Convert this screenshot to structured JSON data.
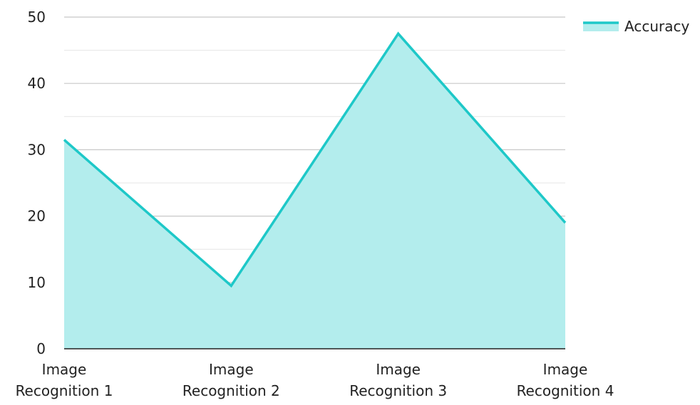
{
  "chart_data": {
    "type": "area",
    "categories": [
      [
        "Image",
        "Recognition 1"
      ],
      [
        "Image",
        "Recognition 2"
      ],
      [
        "Image",
        "Recognition 3"
      ],
      [
        "Image",
        "Recognition 4"
      ]
    ],
    "series": [
      {
        "name": "Accuracy",
        "values": [
          31.5,
          9.5,
          47.5,
          19
        ],
        "color": "#1ec8c8",
        "fill": "#b3eded"
      }
    ],
    "ylim": [
      0,
      50
    ],
    "yticks": [
      0,
      10,
      20,
      30,
      40,
      50
    ],
    "grid": true,
    "minor_grid": true,
    "legend_position": "top-right"
  }
}
